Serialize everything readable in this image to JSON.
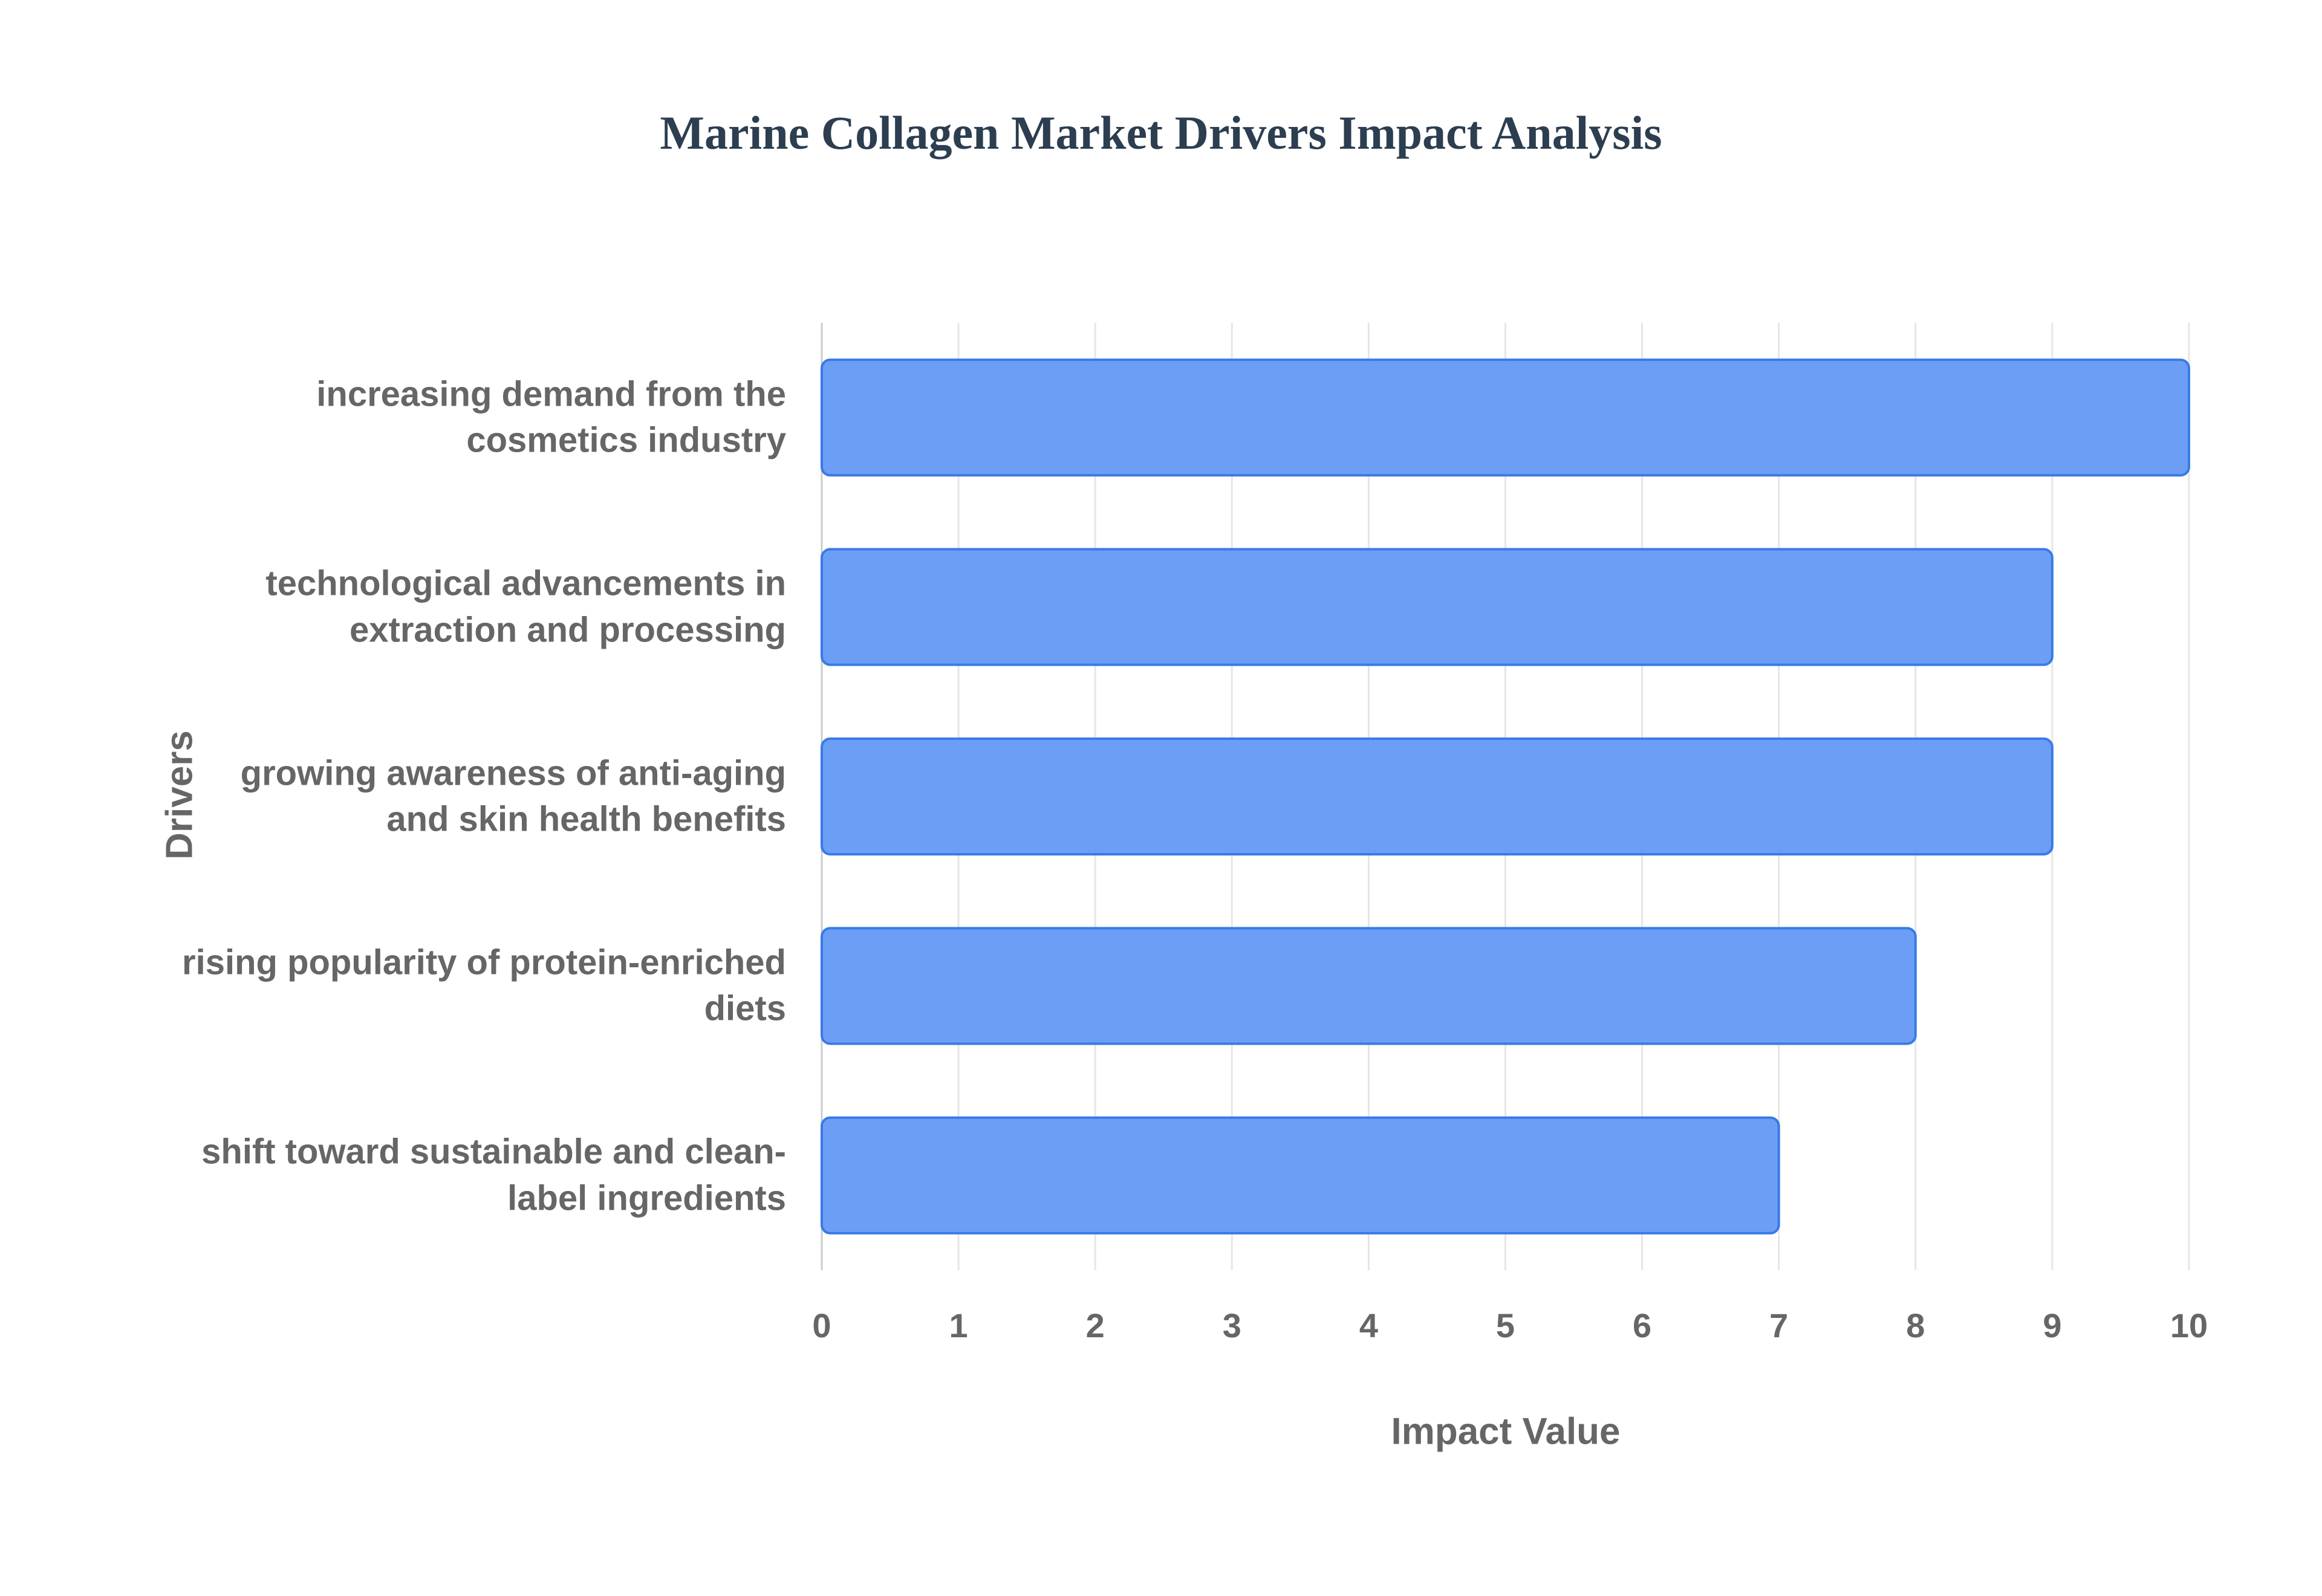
{
  "chart_data": {
    "type": "bar",
    "orientation": "horizontal",
    "title": "Marine Collagen Market Drivers Impact Analysis",
    "x_label": "Impact Value",
    "y_label": "Drivers",
    "categories": [
      "increasing demand from the cosmetics industry",
      "technological advancements in extraction and processing",
      "growing awareness of anti-aging and skin health benefits",
      "rising popularity of protein-enriched diets",
      "shift toward sustainable and clean-label ingredients"
    ],
    "values": [
      10,
      9,
      9,
      8,
      7
    ],
    "color": "#6499f5",
    "xlim": [
      0,
      10
    ],
    "xticks": [
      0,
      1,
      2,
      3,
      4,
      5,
      6,
      7,
      8,
      9,
      10
    ],
    "grid": true
  }
}
